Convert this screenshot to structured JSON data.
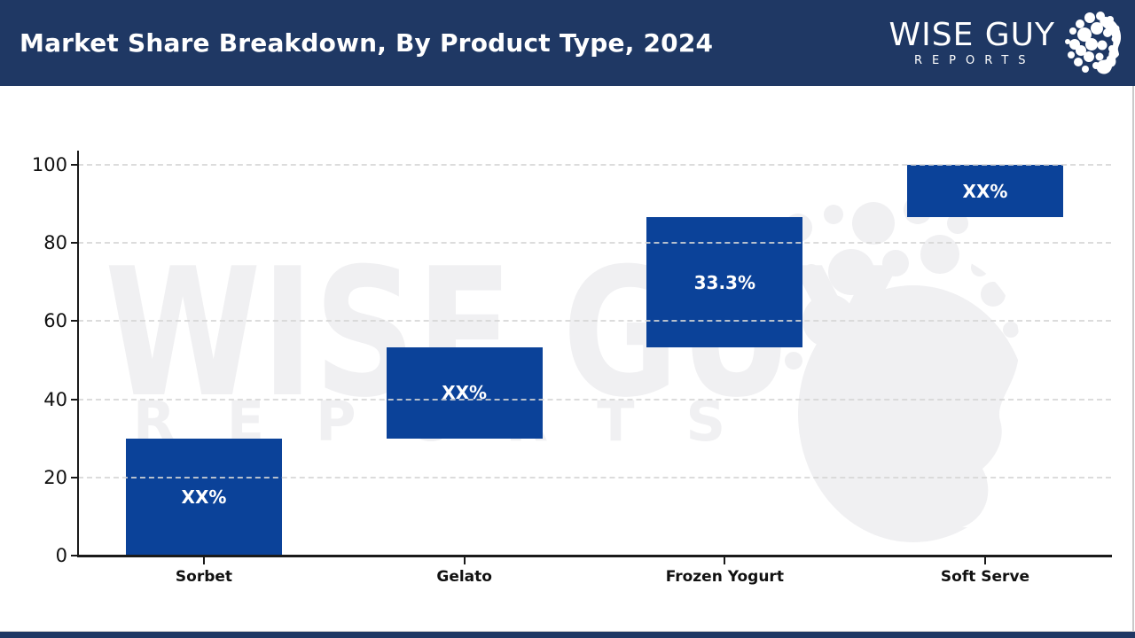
{
  "header": {
    "title": "Market Share Breakdown, By Product Type, 2024",
    "logo": {
      "wordmark": "WISE GUY",
      "subtext": "REPORTS"
    }
  },
  "watermark": {
    "wordmark": "WISE GUY",
    "subtext": "REPORTS"
  },
  "chart_data": {
    "type": "bar",
    "subtype": "floating-segment-waterfall",
    "title": "Market Share Breakdown, By Product Type, 2024",
    "categories": [
      "Sorbet",
      "Gelato",
      "Frozen Yogurt",
      "Soft Serve"
    ],
    "segments": [
      {
        "category": "Sorbet",
        "start": 0,
        "end": 30,
        "label": "XX%"
      },
      {
        "category": "Gelato",
        "start": 30,
        "end": 53.3,
        "label": "XX%"
      },
      {
        "category": "Frozen Yogurt",
        "start": 53.3,
        "end": 86.6,
        "label": "33.3%"
      },
      {
        "category": "Soft Serve",
        "start": 86.6,
        "end": 100,
        "label": "XX%"
      }
    ],
    "xlabel": "",
    "ylabel": "",
    "ylim": [
      0,
      100
    ],
    "yticks": [
      0,
      20,
      40,
      60,
      80,
      100
    ],
    "grid": "horizontal-dashed",
    "legend": "none",
    "bar_color": "#0b4299",
    "bar_label_color": "#ffffff"
  },
  "colors": {
    "header_bg": "#1f3864",
    "footer_bg": "#1f3864",
    "bar": "#0b4299",
    "grid": "#d6d6d6",
    "axis": "#1a1a1a",
    "watermark": "#f0f0f2"
  }
}
